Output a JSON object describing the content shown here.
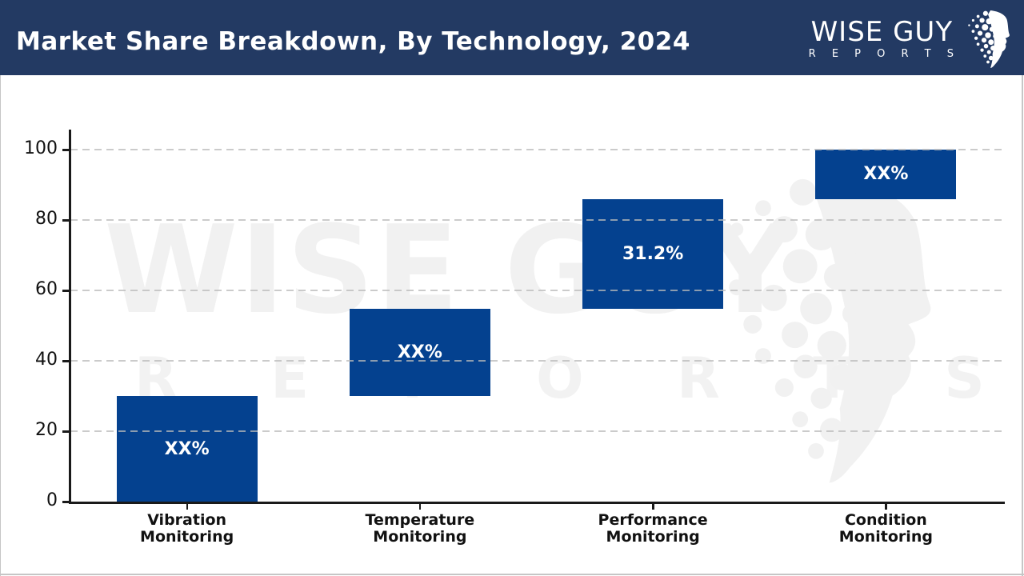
{
  "header": {
    "title": "Market Share Breakdown, By Technology, 2024",
    "bg_color": "#233a63"
  },
  "logo": {
    "name": "WISE GUY",
    "subtitle": "R E P O R T S"
  },
  "watermark": {
    "line1": "WISE GUY",
    "line2": "R E P O R T S"
  },
  "chart_data": {
    "type": "bar",
    "subtype": "floating-waterfall",
    "title": "Market Share Breakdown, By Technology, 2024",
    "xlabel": "",
    "ylabel": "",
    "categories": [
      {
        "line1": "Vibration",
        "line2": "Monitoring"
      },
      {
        "line1": "Temperature",
        "line2": "Monitoring"
      },
      {
        "line1": "Performance",
        "line2": "Monitoring"
      },
      {
        "line1": "Condition",
        "line2": "Monitoring"
      }
    ],
    "segments": [
      {
        "category": "Vibration Monitoring",
        "start": 0,
        "end": 30,
        "value_label": "XX%"
      },
      {
        "category": "Temperature Monitoring",
        "start": 30,
        "end": 54.8,
        "value_label": "XX%"
      },
      {
        "category": "Performance Monitoring",
        "start": 54.8,
        "end": 86,
        "value_label": "31.2%"
      },
      {
        "category": "Condition Monitoring",
        "start": 86,
        "end": 100,
        "value_label": "XX%"
      }
    ],
    "yticks": [
      0,
      20,
      40,
      60,
      80,
      100
    ],
    "ylim": [
      0,
      105
    ],
    "grid": "horizontal-dashed",
    "legend": "none",
    "bar_color": "#04418f",
    "bar_label_color": "#ffffff",
    "grid_color": "#d9d9d9",
    "axis_color": "#1a1a1a"
  }
}
